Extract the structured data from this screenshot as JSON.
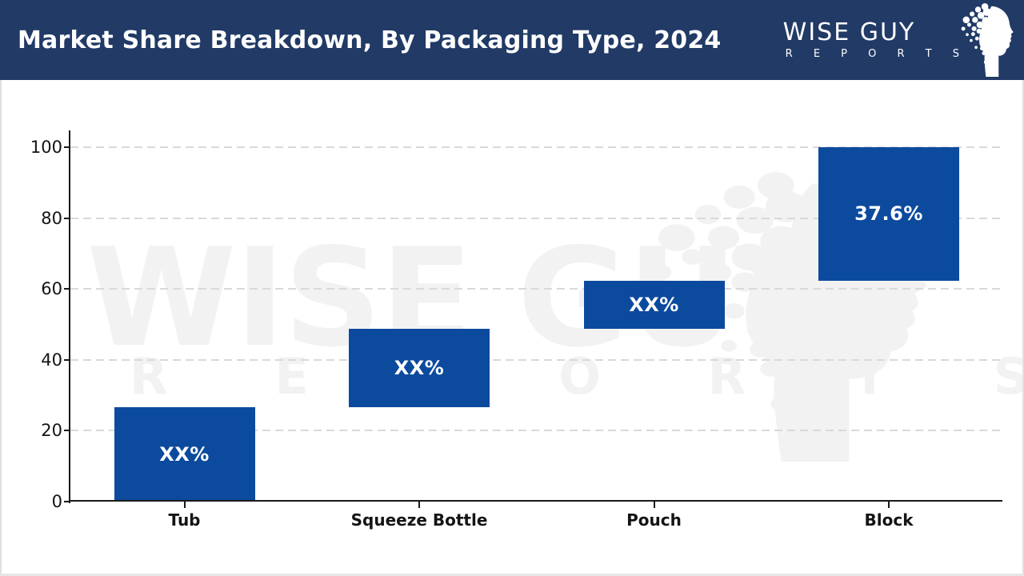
{
  "header": {
    "title": "Market Share Breakdown, By Packaging Type, 2024",
    "logo": {
      "line1": "WISE GUY",
      "line2": "R E P O R T S"
    }
  },
  "watermark": {
    "line1": "WISE GUY",
    "line2": "R E P O R T S"
  },
  "chart_data": {
    "type": "bar",
    "subtype": "floating-waterfall-segments",
    "title": "Market Share Breakdown, By Packaging Type, 2024",
    "categories": [
      "Tub",
      "Squeeze Bottle",
      "Pouch",
      "Block"
    ],
    "bars": [
      {
        "category": "Tub",
        "start": 0,
        "end": 26.6,
        "label": "XX%"
      },
      {
        "category": "Squeeze Bottle",
        "start": 26.6,
        "end": 48.8,
        "label": "XX%"
      },
      {
        "category": "Pouch",
        "start": 48.8,
        "end": 62.4,
        "label": "XX%"
      },
      {
        "category": "Block",
        "start": 62.4,
        "end": 100,
        "label": "37.6%"
      }
    ],
    "yticks": [
      0,
      20,
      40,
      60,
      80,
      100
    ],
    "ylim": [
      0,
      104.7
    ],
    "xlabel": "",
    "ylabel": "",
    "grid": "horizontal-dashed",
    "legend": null
  },
  "colors": {
    "header_bg": "#213a66",
    "bar": "#0c4a9e",
    "grid": "#d9d9d9",
    "axis": "#1a1a1a",
    "bar_label": "#ffffff",
    "watermark": "#f2f2f2"
  }
}
